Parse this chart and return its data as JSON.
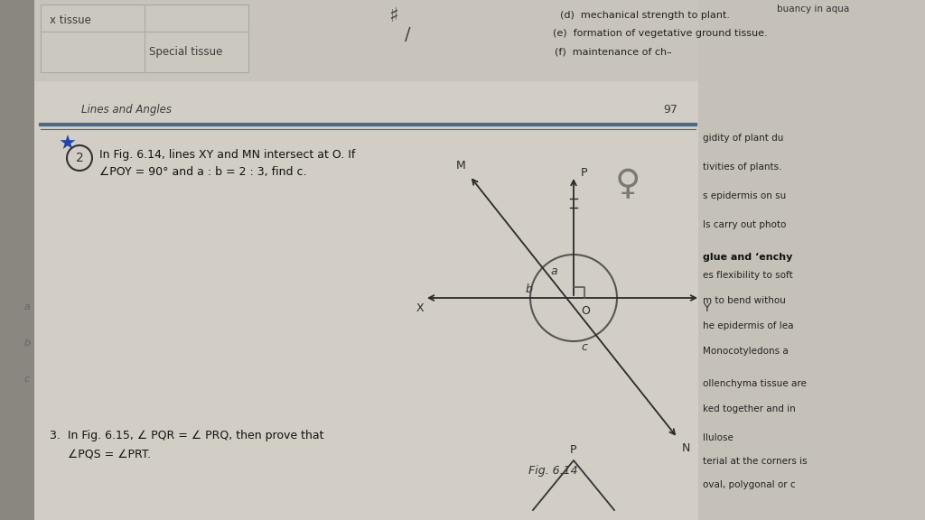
{
  "bg_main": "#c8c4bc",
  "bg_left_strip": "#9a9590",
  "bg_right_col": "#c0bdb5",
  "bg_header_box": "#cbc7c0",
  "bg_white_area": "#d8d4cc",
  "blue_line": "#4a6a8a",
  "header_left_top": "x tissue",
  "header_left_bot": "Special tissue",
  "header_right_line1": "(d)  mechanical strength to plant.",
  "header_right_line2": "(e)  formation of vegetative ground tissue.",
  "header_right_line3": "(f)  maintenance of ch–",
  "header_far_right": "buancy in aqua",
  "page_number": "97",
  "title": "Lines and Angles",
  "right_col_items_1": [
    "gidity of plant du",
    "tivities of plants.",
    "s epidermis on su",
    "ls carry out photo"
  ],
  "right_col_items_2_bold": "glue and ‘enchy",
  "right_col_items_2": [
    "es flexibility to soft",
    "m to bend withou",
    "he epidermis of lea",
    "Monocotyledons a"
  ],
  "right_col_items_3": [
    "ollenchyma tissue are",
    "ked together and in"
  ],
  "right_col_items_4": [
    "llulose",
    "terial at the corners is",
    "oval, polygonal or c"
  ],
  "q2_line1": "In Fig. 6.14, lines XY and MN intersect at O. If",
  "q2_line2": "∠POY = 90° and a : b = 2 : 3, find c.",
  "fig_caption": "Fig. 6.14",
  "q3_line1": "3.  In Fig. 6.15, ∠ PQR = ∠ PRQ, then prove that",
  "q3_line2": "     ∠PQS = ∠PRT.",
  "line_color": "#2a2a2a"
}
